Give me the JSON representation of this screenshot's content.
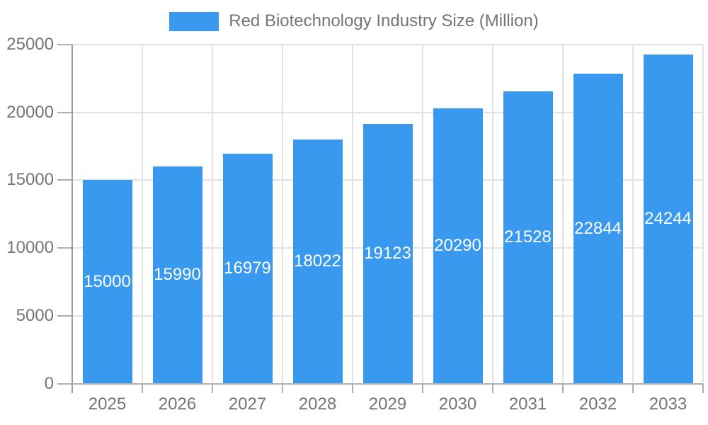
{
  "legend": {
    "label": "Red Biotechnology Industry Size (Million)"
  },
  "chart_data": {
    "type": "bar",
    "title": "Red Biotechnology Industry Size (Million)",
    "xlabel": "",
    "ylabel": "",
    "categories": [
      "2025",
      "2026",
      "2027",
      "2028",
      "2029",
      "2030",
      "2031",
      "2032",
      "2033"
    ],
    "values": [
      15000,
      15990,
      16979,
      18022,
      19123,
      20290,
      21528,
      22844,
      24244
    ],
    "value_labels": [
      "15000",
      "15990",
      "16979",
      "18022",
      "19123",
      "20290",
      "21528",
      "22844",
      "24244"
    ],
    "ylim": [
      0,
      25000
    ],
    "yticks": [
      0,
      5000,
      10000,
      15000,
      20000,
      25000
    ],
    "grid": true,
    "legend_position": "top-center",
    "value_label_position": "inside-center",
    "colors": {
      "bar": "#3999EE",
      "gridline": "#E2E2E2",
      "y_axis_line": "#9B9B9B",
      "x_axis_line": "#B0B0B0",
      "tick": "#AFAFAF",
      "axis_text": "#757575",
      "value_text": "#FFFFFF",
      "background": "#FFFFFF"
    }
  }
}
